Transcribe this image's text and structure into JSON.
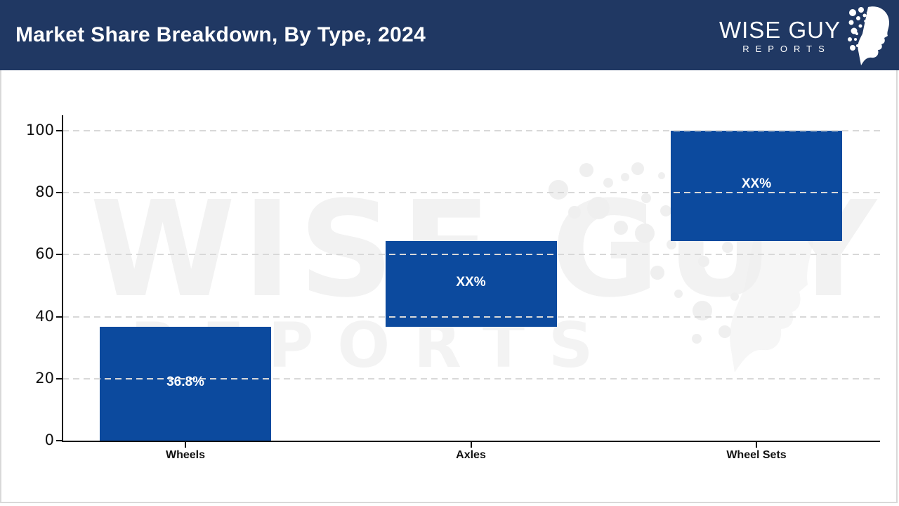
{
  "header": {
    "title": "Market Share Breakdown, By Type, 2024",
    "bg_color": "#203863",
    "logo": {
      "line1": "WISE GUY",
      "line2": "REPORTS"
    }
  },
  "watermark": {
    "line1": "WISE GUY",
    "line2": "REPORTS"
  },
  "chart_data": {
    "type": "bar",
    "subtype": "waterfall",
    "title": "Market Share Breakdown, By Type, 2024",
    "categories": [
      "Wheels",
      "Axles",
      "Wheel Sets"
    ],
    "segments": [
      {
        "category": "Wheels",
        "start": 0,
        "end": 36.8,
        "label": "36.8%"
      },
      {
        "category": "Axles",
        "start": 36.8,
        "end": 64.4,
        "label": "XX%"
      },
      {
        "category": "Wheel Sets",
        "start": 64.4,
        "end": 100,
        "label": "XX%"
      }
    ],
    "yticks": [
      0,
      20,
      40,
      60,
      80,
      100
    ],
    "ylim": [
      0,
      105
    ],
    "xlabel": "",
    "ylabel": "",
    "grid": "horizontal-dashed",
    "legend": "none",
    "bar_color": "#0c4a9e",
    "grid_color": "#d8d8d8",
    "value_label_color": "#ffffff"
  }
}
